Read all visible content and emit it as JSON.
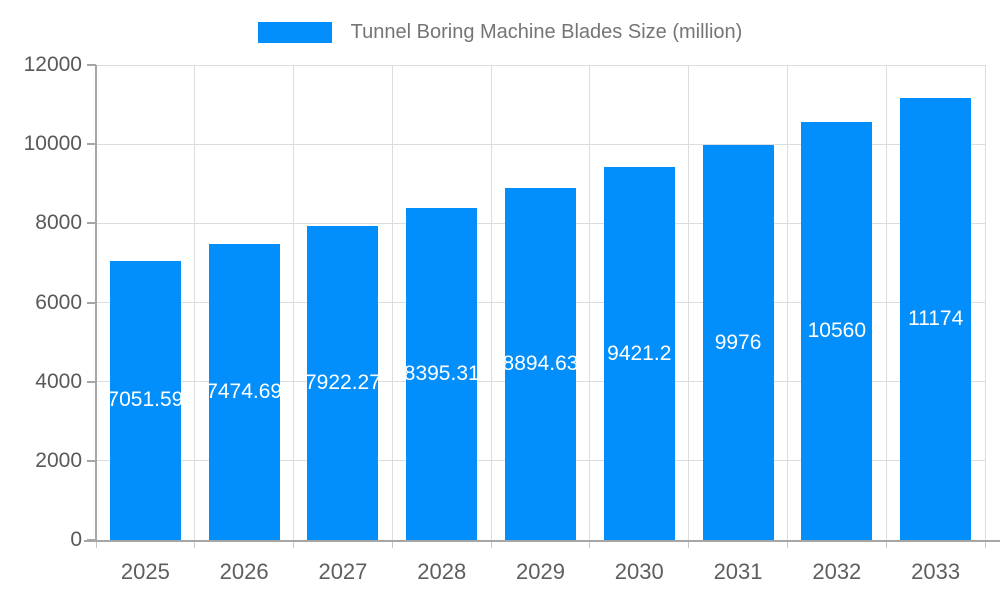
{
  "chart_data": {
    "type": "bar",
    "title": "Tunnel Boring Machine Blades Size (million)",
    "legend": {
      "label": "Tunnel Boring Machine Blades Size (million)",
      "position": "top-center",
      "swatch_color": "#038ffb"
    },
    "categories": [
      "2025",
      "2026",
      "2027",
      "2028",
      "2029",
      "2030",
      "2031",
      "2032",
      "2033"
    ],
    "series": [
      {
        "name": "Tunnel Boring Machine Blades Size (million)",
        "values": [
          7051.59,
          7474.69,
          7922.27,
          8395.31,
          8894.63,
          9421.2,
          9976,
          10560,
          11174
        ]
      }
    ],
    "bar_labels": [
      "7051.59",
      "7474.69",
      "7922.27",
      "8395.31",
      "8894.63",
      "9421.2",
      "9976",
      "10560",
      "11174"
    ],
    "bar_label_position": "inside-center",
    "xlabel": "",
    "ylabel": "",
    "ylim": [
      0,
      12000
    ],
    "yticks": [
      0,
      2000,
      4000,
      6000,
      8000,
      10000,
      12000
    ],
    "grid": true,
    "colors": {
      "bar": "#038ffb",
      "bar_label": "#ffffff",
      "grid": "#dddddd",
      "axis": "#a6a6a6",
      "xtick_mark": "#c4c4c4",
      "ytick_label": "#58595b",
      "xtick_label": "#5d5e60",
      "legend_text": "#757575",
      "background": "#ffffff"
    }
  }
}
